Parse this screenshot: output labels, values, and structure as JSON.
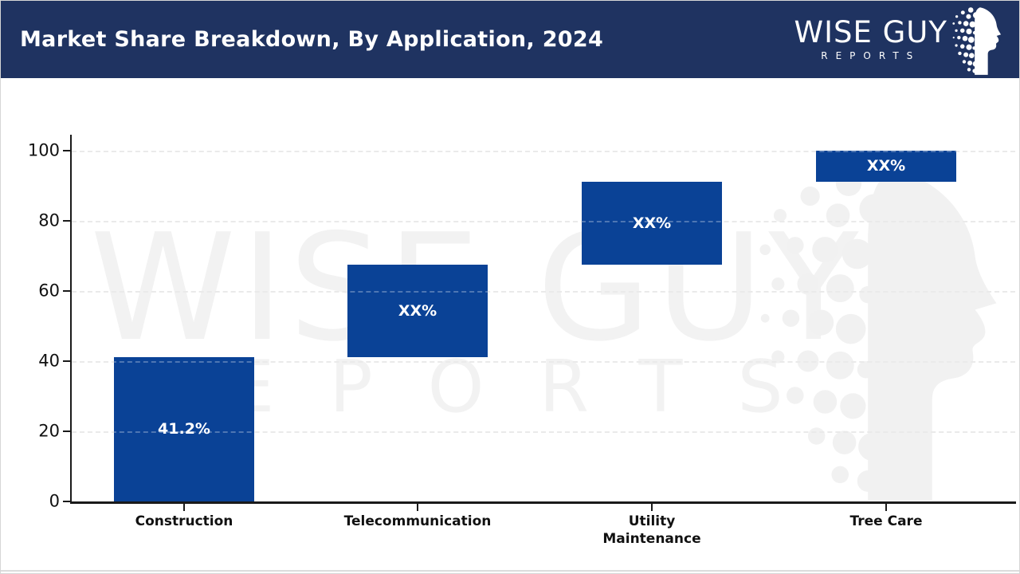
{
  "header": {
    "title": "Market Share Breakdown, By Application, 2024",
    "logo": {
      "line1": "WISE GUY",
      "line2": "REPORTS",
      "head_icon": "dotted-head-profile-icon"
    }
  },
  "watermark": {
    "line1": "WISE GUY",
    "line2": "REPORTS"
  },
  "chart_data": {
    "type": "bar",
    "variant": "waterfall",
    "title": "Market Share Breakdown, By Application, 2024",
    "categories": [
      "Construction",
      "Telecommunication",
      "Utility Maintenance",
      "Tree Care"
    ],
    "series": [
      {
        "name": "Market Share (%)",
        "segments": [
          {
            "category": "Construction",
            "start": 0,
            "end": 41.2,
            "value": 41.2,
            "label": "41.2%"
          },
          {
            "category": "Telecommunication",
            "start": 41.2,
            "end": 67.6,
            "value": 26.4,
            "label": "XX%"
          },
          {
            "category": "Utility Maintenance",
            "start": 67.6,
            "end": 91.2,
            "value": 23.6,
            "label": "XX%"
          },
          {
            "category": "Tree Care",
            "start": 91.2,
            "end": 100,
            "value": 8.8,
            "label": "XX%"
          }
        ]
      }
    ],
    "xlabel": "",
    "ylabel": "",
    "ylim": [
      0,
      100
    ],
    "yticks": [
      0,
      20,
      40,
      60,
      80,
      100
    ],
    "grid": {
      "horizontal": true,
      "style": "dashed"
    },
    "legend": "none",
    "colors": {
      "bar": "#0a4296",
      "bar_label": "#ffffff",
      "axis": "#1a1a1a",
      "gridline": "#e2e2e2",
      "header_bg": "#1f3361",
      "watermark": "#f2f2f2"
    }
  }
}
